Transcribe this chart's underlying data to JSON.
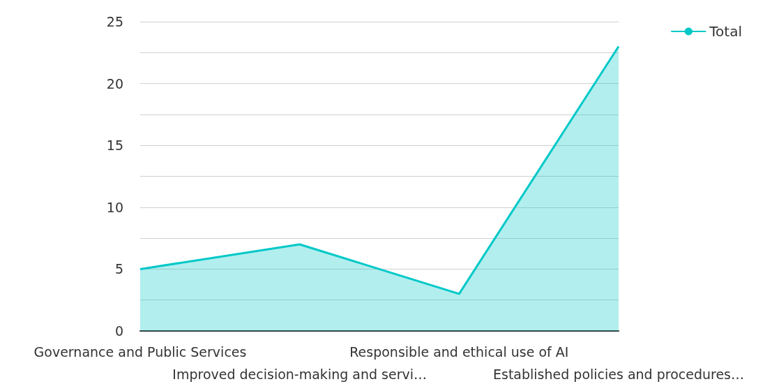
{
  "chart_data": {
    "type": "area",
    "categories": [
      "Governance and Public Services",
      "Improved decision-making and servi…",
      "Responsible and ethical use of AI",
      "Established policies and procedures…"
    ],
    "series": [
      {
        "name": "Total",
        "color": "#00c8c8",
        "values": [
          5,
          7,
          3,
          23
        ]
      }
    ],
    "ylim": [
      0,
      25
    ],
    "yticks": [
      0,
      {
        "value": 2.5,
        "label": null
      },
      5,
      {
        "value": 7.5,
        "label": null
      },
      10,
      {
        "value": 12.5,
        "label": null
      },
      15,
      {
        "value": 17.5,
        "label": null
      },
      20,
      {
        "value": 22.5,
        "label": null
      },
      25
    ],
    "grid": "y",
    "legend": "top right",
    "marker": "none"
  }
}
